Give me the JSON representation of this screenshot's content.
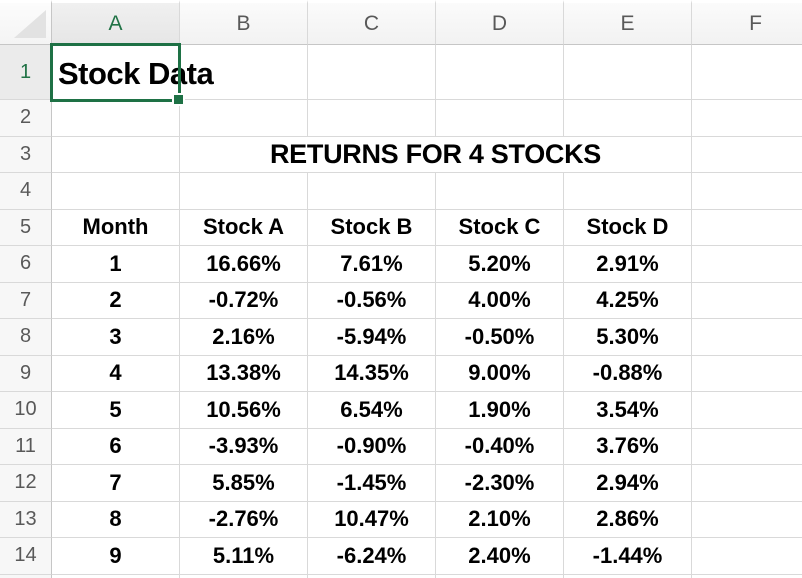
{
  "sheet": {
    "select_all_icon": "select-all-triangle",
    "column_headers": [
      {
        "letter": "A",
        "selected": true
      },
      {
        "letter": "B",
        "selected": false
      },
      {
        "letter": "C",
        "selected": false
      },
      {
        "letter": "D",
        "selected": false
      },
      {
        "letter": "E",
        "selected": false
      },
      {
        "letter": "F",
        "selected": false
      }
    ],
    "selection": {
      "cell_ref": "A1"
    },
    "rows": [
      {
        "number": "1",
        "selected": true,
        "cells": [
          {
            "col": "A",
            "text": "Stock Data",
            "kind": "a1"
          }
        ]
      },
      {
        "number": "2",
        "cells": []
      },
      {
        "number": "3",
        "cells": [
          {
            "col": "B",
            "colspan": 4,
            "text": "RETURNS FOR 4 STOCKS",
            "kind": "title"
          }
        ]
      },
      {
        "number": "4",
        "cells": []
      },
      {
        "number": "5",
        "cells": [
          {
            "col": "A",
            "text": "Month",
            "kind": "colhead"
          },
          {
            "col": "B",
            "text": "Stock A",
            "kind": "colhead"
          },
          {
            "col": "C",
            "text": "Stock B",
            "kind": "colhead"
          },
          {
            "col": "D",
            "text": "Stock C",
            "kind": "colhead"
          },
          {
            "col": "E",
            "text": "Stock D",
            "kind": "colhead"
          }
        ]
      },
      {
        "number": "6",
        "cells": [
          {
            "col": "A",
            "text": "1"
          },
          {
            "col": "B",
            "text": "16.66%"
          },
          {
            "col": "C",
            "text": "7.61%"
          },
          {
            "col": "D",
            "text": "5.20%"
          },
          {
            "col": "E",
            "text": "2.91%"
          }
        ]
      },
      {
        "number": "7",
        "cells": [
          {
            "col": "A",
            "text": "2"
          },
          {
            "col": "B",
            "text": "-0.72%"
          },
          {
            "col": "C",
            "text": "-0.56%"
          },
          {
            "col": "D",
            "text": "4.00%"
          },
          {
            "col": "E",
            "text": "4.25%"
          }
        ]
      },
      {
        "number": "8",
        "cells": [
          {
            "col": "A",
            "text": "3"
          },
          {
            "col": "B",
            "text": "2.16%"
          },
          {
            "col": "C",
            "text": "-5.94%"
          },
          {
            "col": "D",
            "text": "-0.50%"
          },
          {
            "col": "E",
            "text": "5.30%"
          }
        ]
      },
      {
        "number": "9",
        "cells": [
          {
            "col": "A",
            "text": "4"
          },
          {
            "col": "B",
            "text": "13.38%"
          },
          {
            "col": "C",
            "text": "14.35%"
          },
          {
            "col": "D",
            "text": "9.00%"
          },
          {
            "col": "E",
            "text": "-0.88%"
          }
        ]
      },
      {
        "number": "10",
        "cells": [
          {
            "col": "A",
            "text": "5"
          },
          {
            "col": "B",
            "text": "10.56%"
          },
          {
            "col": "C",
            "text": "6.54%"
          },
          {
            "col": "D",
            "text": "1.90%"
          },
          {
            "col": "E",
            "text": "3.54%"
          }
        ]
      },
      {
        "number": "11",
        "cells": [
          {
            "col": "A",
            "text": "6"
          },
          {
            "col": "B",
            "text": "-3.93%"
          },
          {
            "col": "C",
            "text": "-0.90%"
          },
          {
            "col": "D",
            "text": "-0.40%"
          },
          {
            "col": "E",
            "text": "3.76%"
          }
        ]
      },
      {
        "number": "12",
        "cells": [
          {
            "col": "A",
            "text": "7"
          },
          {
            "col": "B",
            "text": "5.85%"
          },
          {
            "col": "C",
            "text": "-1.45%"
          },
          {
            "col": "D",
            "text": "-2.30%"
          },
          {
            "col": "E",
            "text": "2.94%"
          }
        ]
      },
      {
        "number": "13",
        "cells": [
          {
            "col": "A",
            "text": "8"
          },
          {
            "col": "B",
            "text": "-2.76%"
          },
          {
            "col": "C",
            "text": "10.47%"
          },
          {
            "col": "D",
            "text": "2.10%"
          },
          {
            "col": "E",
            "text": "2.86%"
          }
        ]
      },
      {
        "number": "14",
        "cells": [
          {
            "col": "A",
            "text": "9"
          },
          {
            "col": "B",
            "text": "5.11%"
          },
          {
            "col": "C",
            "text": "-6.24%"
          },
          {
            "col": "D",
            "text": "2.40%"
          },
          {
            "col": "E",
            "text": "-1.44%"
          }
        ]
      }
    ],
    "colors": {
      "selection_green": "#1E7145",
      "header_selected_text": "#217346",
      "gridline": "#D9D9D9",
      "header_text": "#595959",
      "cell_text": "#000000"
    }
  }
}
